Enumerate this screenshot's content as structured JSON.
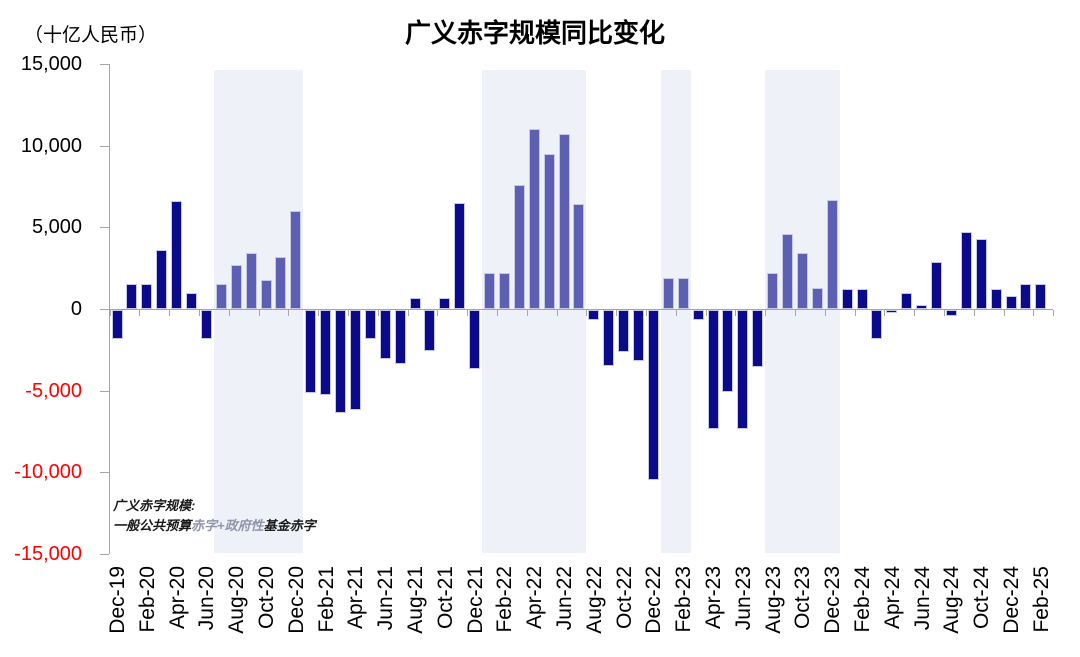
{
  "title": "广义赤字规模同比变化",
  "unit_label": "（十亿人民币）",
  "annotation": {
    "line1": "广义赤字规模:",
    "line2_part1": "一般公共预算",
    "line2_part2": "赤字+政府性",
    "line2_part3": "基金赤字"
  },
  "colors": {
    "bar_dark": "#0a0a8a",
    "bar_light": "#5d60b2",
    "bar_border": "#c6c9e4",
    "band_bg": "#eef1f7",
    "axis_line": "#a6a6a6",
    "label_positive": "#000000",
    "label_negative": "#fe0000"
  },
  "chart_data": {
    "type": "bar",
    "title": "广义赤字规模同比变化",
    "ylabel": "（十亿人民币）",
    "ylim": [
      -15000,
      15000
    ],
    "grid": false,
    "legend": "none",
    "x_tick_step": 2,
    "y_ticks": [
      {
        "label": "15,000",
        "value": 15000
      },
      {
        "label": "10,000",
        "value": 10000
      },
      {
        "label": "5,000",
        "value": 5000
      },
      {
        "label": "0",
        "value": 0
      },
      {
        "label": "-5,000",
        "value": -5000
      },
      {
        "label": "-10,000",
        "value": -10000
      },
      {
        "label": "-15,000",
        "value": -15000
      }
    ],
    "categories": [
      "Dec-19",
      "Jan-20",
      "Feb-20",
      "Mar-20",
      "Apr-20",
      "May-20",
      "Jun-20",
      "Jul-20",
      "Aug-20",
      "Sep-20",
      "Oct-20",
      "Nov-20",
      "Dec-20",
      "Jan-21",
      "Feb-21",
      "Mar-21",
      "Apr-21",
      "May-21",
      "Jun-21",
      "Jul-21",
      "Aug-21",
      "Sep-21",
      "Oct-21",
      "Nov-21",
      "Dec-21",
      "Jan-22",
      "Feb-22",
      "Mar-22",
      "Apr-22",
      "May-22",
      "Jun-22",
      "Jul-22",
      "Aug-22",
      "Sep-22",
      "Oct-22",
      "Nov-22",
      "Dec-22",
      "Jan-23",
      "Feb-23",
      "Mar-23",
      "Apr-23",
      "May-23",
      "Jun-23",
      "Jul-23",
      "Aug-23",
      "Sep-23",
      "Oct-23",
      "Nov-23",
      "Dec-23",
      "Jan-24",
      "Feb-24",
      "Mar-24",
      "Apr-24",
      "May-24",
      "Jun-24",
      "Jul-24",
      "Aug-24",
      "Sep-24",
      "Oct-24",
      "Nov-24",
      "Dec-24",
      "Jan-25",
      "Feb-25"
    ],
    "values": [
      -1800,
      1500,
      1500,
      3600,
      6600,
      950,
      -1800,
      1500,
      2700,
      3400,
      1800,
      3200,
      6000,
      -5100,
      -5200,
      -6300,
      -6100,
      -1800,
      -3000,
      -3300,
      650,
      -2500,
      700,
      6500,
      -3600,
      2200,
      2200,
      7600,
      11000,
      9500,
      10700,
      6400,
      -600,
      -3400,
      -2600,
      -3100,
      -10400,
      1900,
      1900,
      -600,
      -7300,
      -5000,
      -7300,
      -3500,
      2200,
      4600,
      3400,
      1300,
      6700,
      1200,
      1200,
      -1800,
      -200,
      950,
      250,
      2900,
      -350,
      4700,
      4300,
      1250,
      800,
      1500,
      1500
    ],
    "highlight_bands": [
      [
        7,
        12
      ],
      [
        25,
        31
      ],
      [
        37,
        38
      ],
      [
        44,
        48
      ]
    ]
  }
}
